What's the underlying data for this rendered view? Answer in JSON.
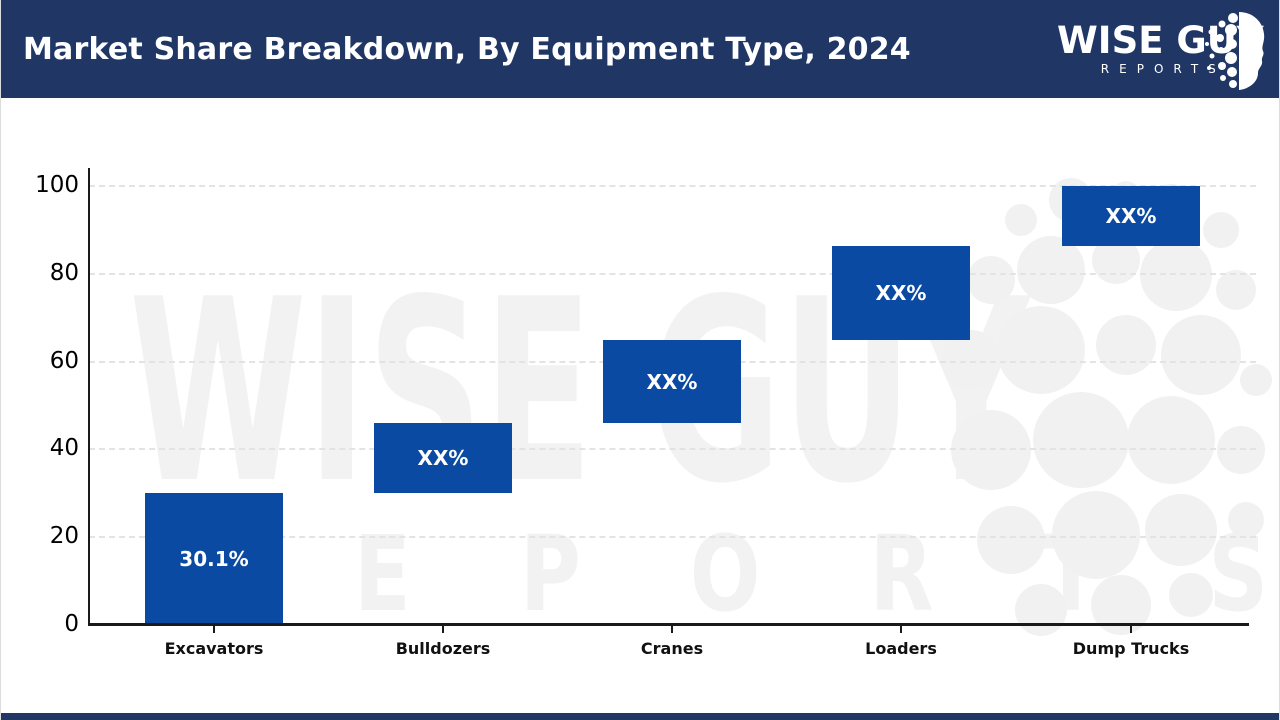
{
  "header": {
    "title": "Market Share Breakdown, By Equipment Type, 2024",
    "logo": {
      "wordmark": "WISE GUY",
      "subtext": "REPORTS"
    }
  },
  "watermark": {
    "wordmark": "WISE GUY",
    "subtext": "R E P O R T S"
  },
  "colors": {
    "header_bg": "#203766",
    "bar": "#0b4aa2",
    "grid": "#e3e3e3",
    "axis": "#1a1a1a",
    "bar_label_text": "#ffffff",
    "watermark": "#f2f2f2"
  },
  "chart_data": {
    "type": "bar",
    "subtype": "waterfall",
    "title": "Market Share Breakdown, By Equipment Type, 2024",
    "categories": [
      "Excavators",
      "Bulldozers",
      "Cranes",
      "Loaders",
      "Dump Trucks"
    ],
    "series": [
      {
        "name": "Market Share",
        "segments": [
          {
            "category": "Excavators",
            "start": 0,
            "end": 30.1,
            "label": "30.1%"
          },
          {
            "category": "Bulldozers",
            "start": 30.1,
            "end": 45.9,
            "label": "XX%"
          },
          {
            "category": "Cranes",
            "start": 45.9,
            "end": 64.9,
            "label": "XX%"
          },
          {
            "category": "Loaders",
            "start": 64.9,
            "end": 86.4,
            "label": "XX%"
          },
          {
            "category": "Dump Trucks",
            "start": 86.4,
            "end": 100,
            "label": "XX%"
          }
        ]
      }
    ],
    "y_ticks": [
      0,
      20,
      40,
      60,
      80,
      100
    ],
    "ylim": [
      0,
      104
    ],
    "xlabel": "",
    "ylabel": "",
    "grid": "horizontal-dashed",
    "legend": "none"
  }
}
